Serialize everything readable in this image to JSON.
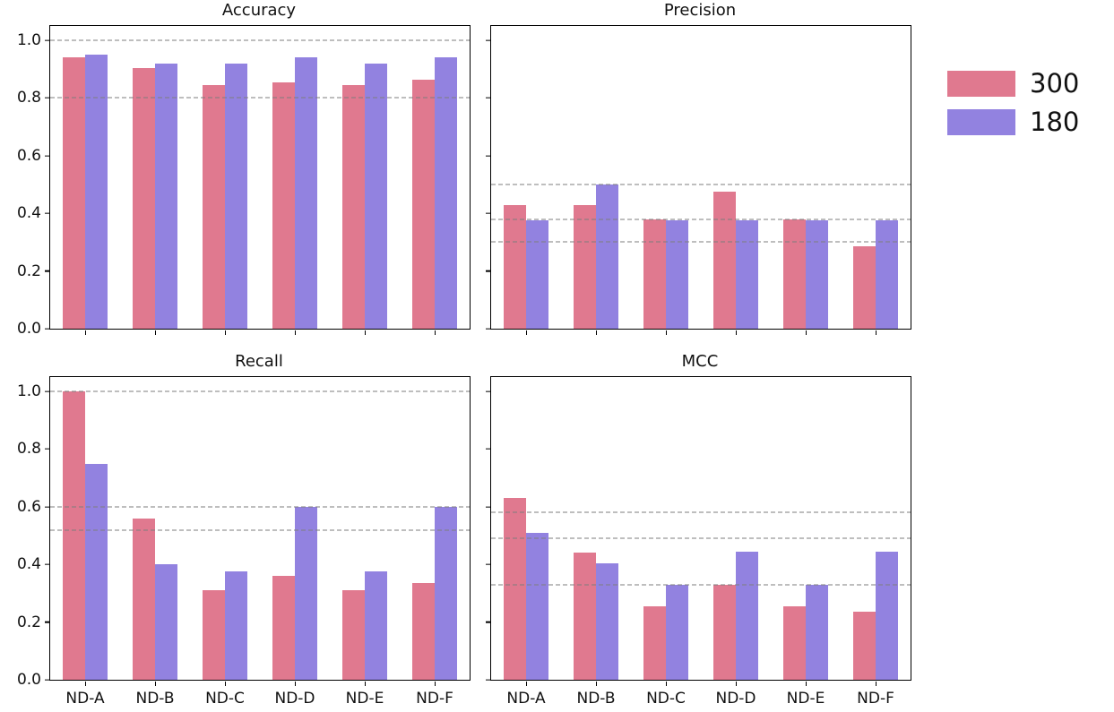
{
  "figure": {
    "background": "#ffffff"
  },
  "legend": {
    "entries": [
      {
        "label": "300",
        "color": "#e0798f"
      },
      {
        "label": "180",
        "color": "#9282e0"
      }
    ]
  },
  "chart_data": [
    {
      "type": "bar",
      "title": "Accuracy",
      "categories": [
        "ND-A",
        "ND-B",
        "ND-C",
        "ND-D",
        "ND-E",
        "ND-F"
      ],
      "series": [
        {
          "name": "300",
          "color": "#e0798f",
          "values": [
            0.94,
            0.905,
            0.845,
            0.855,
            0.845,
            0.865
          ]
        },
        {
          "name": "180",
          "color": "#9282e0",
          "values": [
            0.95,
            0.92,
            0.92,
            0.94,
            0.92,
            0.94
          ]
        }
      ],
      "ylim": [
        0,
        1.05
      ],
      "yticks": [
        0.0,
        0.2,
        0.4,
        0.6,
        0.8,
        1.0
      ],
      "gridlines": [
        1.0,
        0.8
      ],
      "grid_style": "dashed",
      "show_y_labels": true,
      "show_x_labels": false
    },
    {
      "type": "bar",
      "title": "Precision",
      "categories": [
        "ND-A",
        "ND-B",
        "ND-C",
        "ND-D",
        "ND-E",
        "ND-F"
      ],
      "series": [
        {
          "name": "300",
          "color": "#e0798f",
          "values": [
            0.43,
            0.43,
            0.38,
            0.475,
            0.38,
            0.285
          ]
        },
        {
          "name": "180",
          "color": "#9282e0",
          "values": [
            0.375,
            0.5,
            0.375,
            0.375,
            0.375,
            0.375
          ]
        }
      ],
      "ylim": [
        0,
        1.05
      ],
      "yticks": [
        0.0,
        0.2,
        0.4,
        0.6,
        0.8,
        1.0
      ],
      "gridlines": [
        0.5,
        0.38,
        0.3
      ],
      "grid_style": "dashed",
      "show_y_labels": false,
      "show_x_labels": false
    },
    {
      "type": "bar",
      "title": "Recall",
      "categories": [
        "ND-A",
        "ND-B",
        "ND-C",
        "ND-D",
        "ND-E",
        "ND-F"
      ],
      "series": [
        {
          "name": "300",
          "color": "#e0798f",
          "values": [
            1.0,
            0.56,
            0.31,
            0.36,
            0.31,
            0.335
          ]
        },
        {
          "name": "180",
          "color": "#9282e0",
          "values": [
            0.75,
            0.4,
            0.375,
            0.6,
            0.375,
            0.6
          ]
        }
      ],
      "ylim": [
        0,
        1.05
      ],
      "yticks": [
        0.0,
        0.2,
        0.4,
        0.6,
        0.8,
        1.0
      ],
      "gridlines": [
        1.0,
        0.6,
        0.52
      ],
      "grid_style": "dashed",
      "show_y_labels": true,
      "show_x_labels": true
    },
    {
      "type": "bar",
      "title": "MCC",
      "categories": [
        "ND-A",
        "ND-B",
        "ND-C",
        "ND-D",
        "ND-E",
        "ND-F"
      ],
      "series": [
        {
          "name": "300",
          "color": "#e0798f",
          "values": [
            0.63,
            0.44,
            0.255,
            0.33,
            0.255,
            0.235
          ]
        },
        {
          "name": "180",
          "color": "#9282e0",
          "values": [
            0.51,
            0.405,
            0.33,
            0.445,
            0.33,
            0.445
          ]
        }
      ],
      "ylim": [
        0,
        1.05
      ],
      "yticks": [
        0.0,
        0.2,
        0.4,
        0.6,
        0.8,
        1.0
      ],
      "gridlines": [
        0.58,
        0.49,
        0.33
      ],
      "grid_style": "dashed",
      "show_y_labels": false,
      "show_x_labels": true
    }
  ]
}
